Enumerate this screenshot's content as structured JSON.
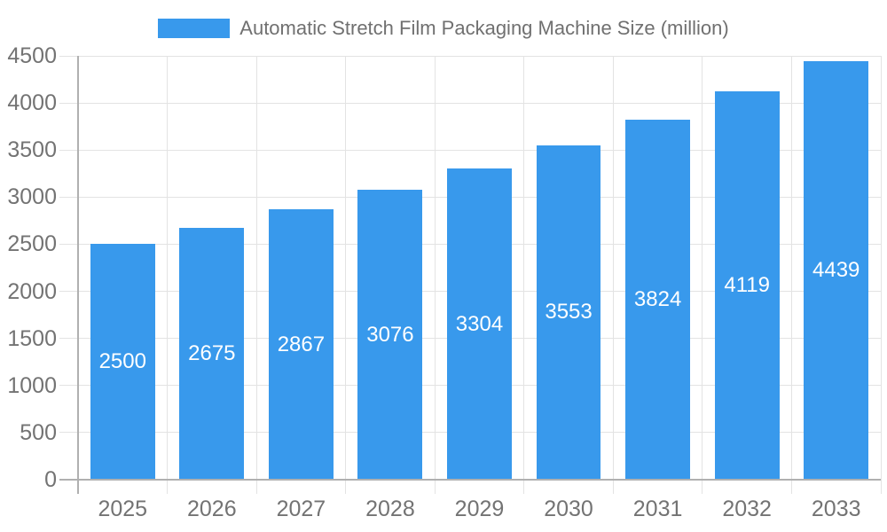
{
  "chart_data": {
    "type": "bar",
    "title": "Automatic Stretch Film Packaging Machine Size (million)",
    "categories": [
      "2025",
      "2026",
      "2027",
      "2028",
      "2029",
      "2030",
      "2031",
      "2032",
      "2033"
    ],
    "series": [
      {
        "name": "Automatic Stretch Film Packaging Machine Size (million)",
        "values": [
          2500,
          2675,
          2867,
          3076,
          3304,
          3553,
          3824,
          4119,
          4439
        ]
      }
    ],
    "values": [
      2500,
      2675,
      2867,
      3076,
      3304,
      3553,
      3824,
      4119,
      4439
    ],
    "value_labels": [
      "2500",
      "2675",
      "2867",
      "3076",
      "3304",
      "3553",
      "3824",
      "4119",
      "4439"
    ],
    "xlabel": "",
    "ylabel": "",
    "ylim": [
      0,
      4500
    ],
    "ytick_step": 500,
    "ytick_labels": [
      "0",
      "500",
      "1000",
      "1500",
      "2000",
      "2500",
      "3000",
      "3500",
      "4000",
      "4500"
    ],
    "grid": true,
    "legend_position": "top-center",
    "colors": {
      "bar": "#3899EC",
      "grid": "#e3e3e3",
      "axis": "#b0b0b0",
      "tick_text": "#737373",
      "legend_text": "#707070",
      "value_label_text": "#ffffff",
      "background": "#ffffff"
    }
  }
}
